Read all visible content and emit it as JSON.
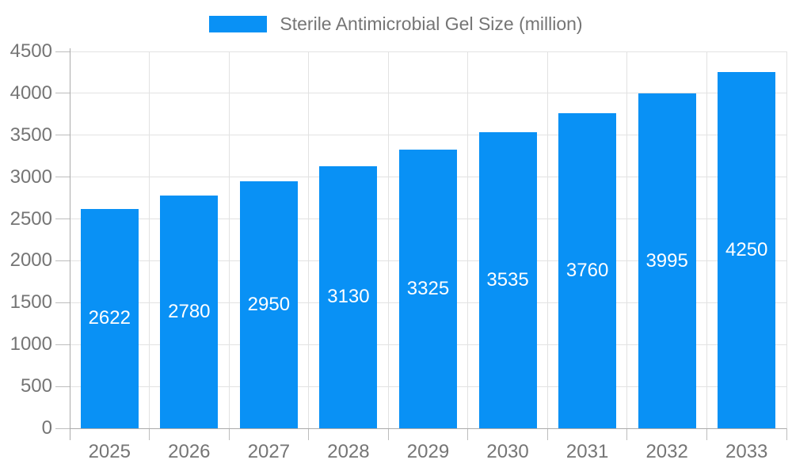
{
  "legend": {
    "label": "Sterile Antimicrobial Gel Size (million)",
    "swatch_color": "#0991f5"
  },
  "chart_data": {
    "type": "bar",
    "title": "Sterile Antimicrobial Gel Size (million)",
    "categories": [
      "2025",
      "2026",
      "2027",
      "2028",
      "2029",
      "2030",
      "2031",
      "2032",
      "2033"
    ],
    "values": [
      2622,
      2780,
      2950,
      3130,
      3325,
      3535,
      3760,
      3995,
      4250
    ],
    "xlabel": "",
    "ylabel": "",
    "ylim": [
      0,
      4500
    ],
    "yticks": [
      0,
      500,
      1000,
      1500,
      2000,
      2500,
      3000,
      3500,
      4000,
      4500
    ],
    "grid": true,
    "legend_position": "top",
    "value_labels": "inside-center"
  },
  "colors": {
    "bar": "#0991f5",
    "grid": "#e2e2e2",
    "axis": "#ababab",
    "tick": "#bdbdbd",
    "text": "#757575",
    "value_label": "#ffffff",
    "background": "#ffffff"
  }
}
